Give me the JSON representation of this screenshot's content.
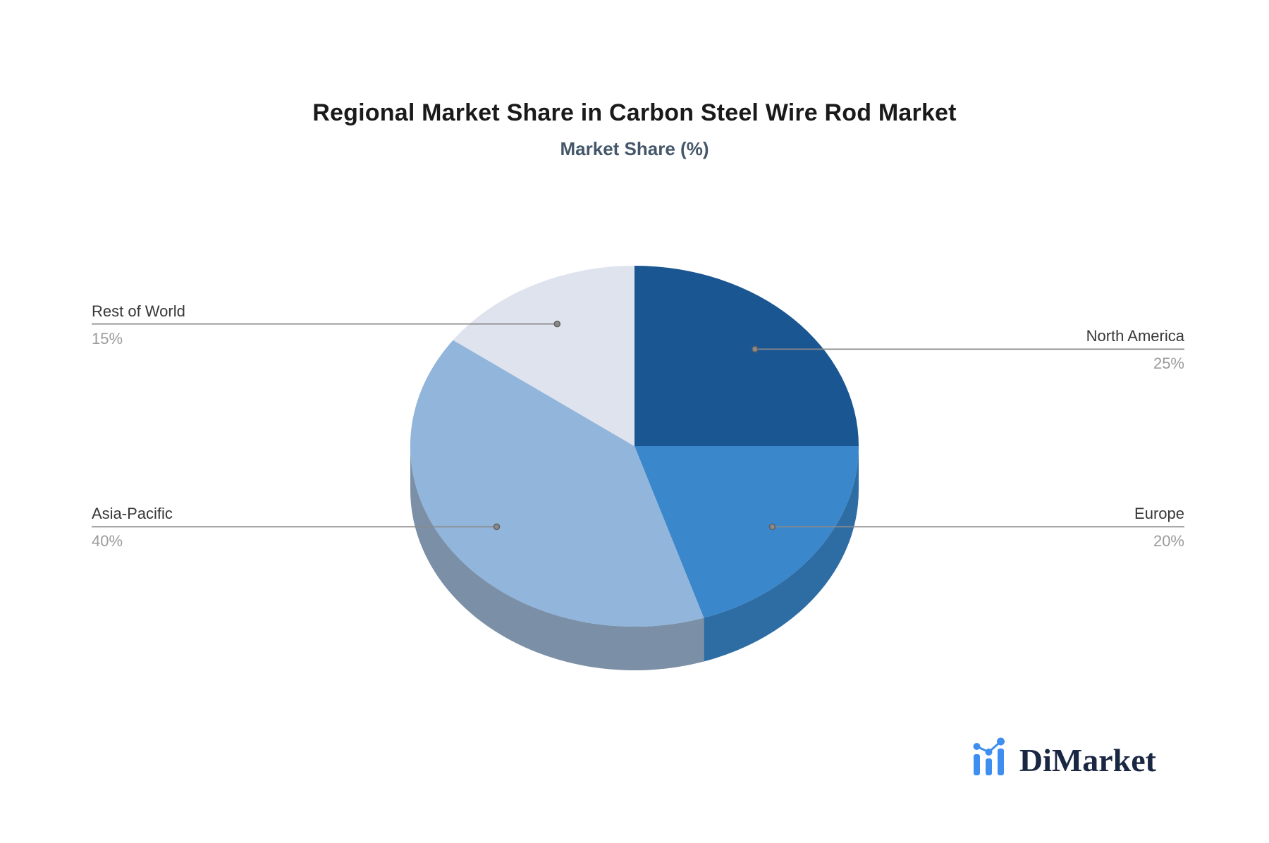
{
  "brand": {
    "name": "DiMarket",
    "icon": "bar-line-chart-icon"
  },
  "colors": {
    "background": "#ffffff",
    "title_text": "#1a1a1a",
    "subtitle_text": "#44576a",
    "label_text": "#383838",
    "value_text": "#9b9b9b",
    "leader_line": "#8a8a8a",
    "dot_fill": "#8a8a8a",
    "dot_ring": "#5f5f5f",
    "logo_blue": "#3d8ef0",
    "logo_navy": "#1a2742"
  },
  "chart_data": {
    "type": "pie",
    "title": "Regional Market Share in Carbon Steel Wire Rod Market",
    "subtitle": "Market Share (%)",
    "unit": "%",
    "categories": [
      "North America",
      "Europe",
      "Asia-Pacific",
      "Rest of World"
    ],
    "values": [
      25,
      20,
      40,
      15
    ],
    "slice_colors": [
      "#1a5692",
      "#3a87cb",
      "#92b5db",
      "#dee3ed"
    ],
    "wall_colors": [
      "#164a7e",
      "#2e6da4",
      "#7b90a6",
      "#b8c4d6"
    ],
    "start_angle_deg": 0,
    "direction": "clockwise",
    "effect": "3d-depth",
    "legend": "none",
    "labels_show_percent": true
  },
  "callouts": [
    {
      "name": "North America",
      "value": "25%",
      "side": "right"
    },
    {
      "name": "Europe",
      "value": "20%",
      "side": "right"
    },
    {
      "name": "Asia-Pacific",
      "value": "40%",
      "side": "left"
    },
    {
      "name": "Rest of World",
      "value": "15%",
      "side": "left"
    }
  ]
}
